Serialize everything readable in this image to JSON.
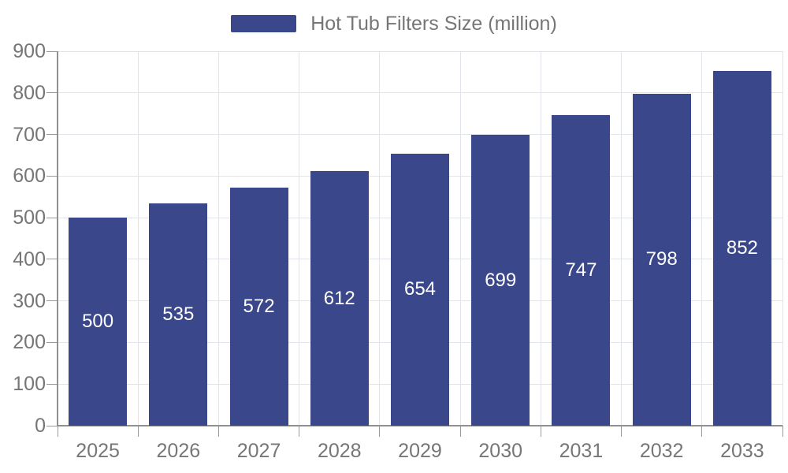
{
  "chart_data": {
    "type": "bar",
    "title": "Hot Tub Filters Size (million)",
    "legend": [
      "Hot Tub Filters Size (million)"
    ],
    "legend_position": "top",
    "categories": [
      "2025",
      "2026",
      "2027",
      "2028",
      "2029",
      "2030",
      "2031",
      "2032",
      "2033"
    ],
    "values": [
      500,
      535,
      572,
      612,
      654,
      699,
      747,
      798,
      852
    ],
    "xlabel": "",
    "ylabel": "",
    "ylim": [
      0,
      900
    ],
    "ytick_interval": 100,
    "ytick_labels": [
      "0",
      "100",
      "200",
      "300",
      "400",
      "500",
      "600",
      "700",
      "800",
      "900"
    ],
    "grid": true,
    "value_labels_shown": true,
    "colors": {
      "bar": "#3A478B",
      "value_label": "#FFFFFF",
      "axis_text": "#767676",
      "legend_text": "#767676",
      "grid_line": "#E2E4EC",
      "axis_line": "#909090",
      "tick_line": "#999999",
      "background": "#FFFFFF"
    }
  }
}
